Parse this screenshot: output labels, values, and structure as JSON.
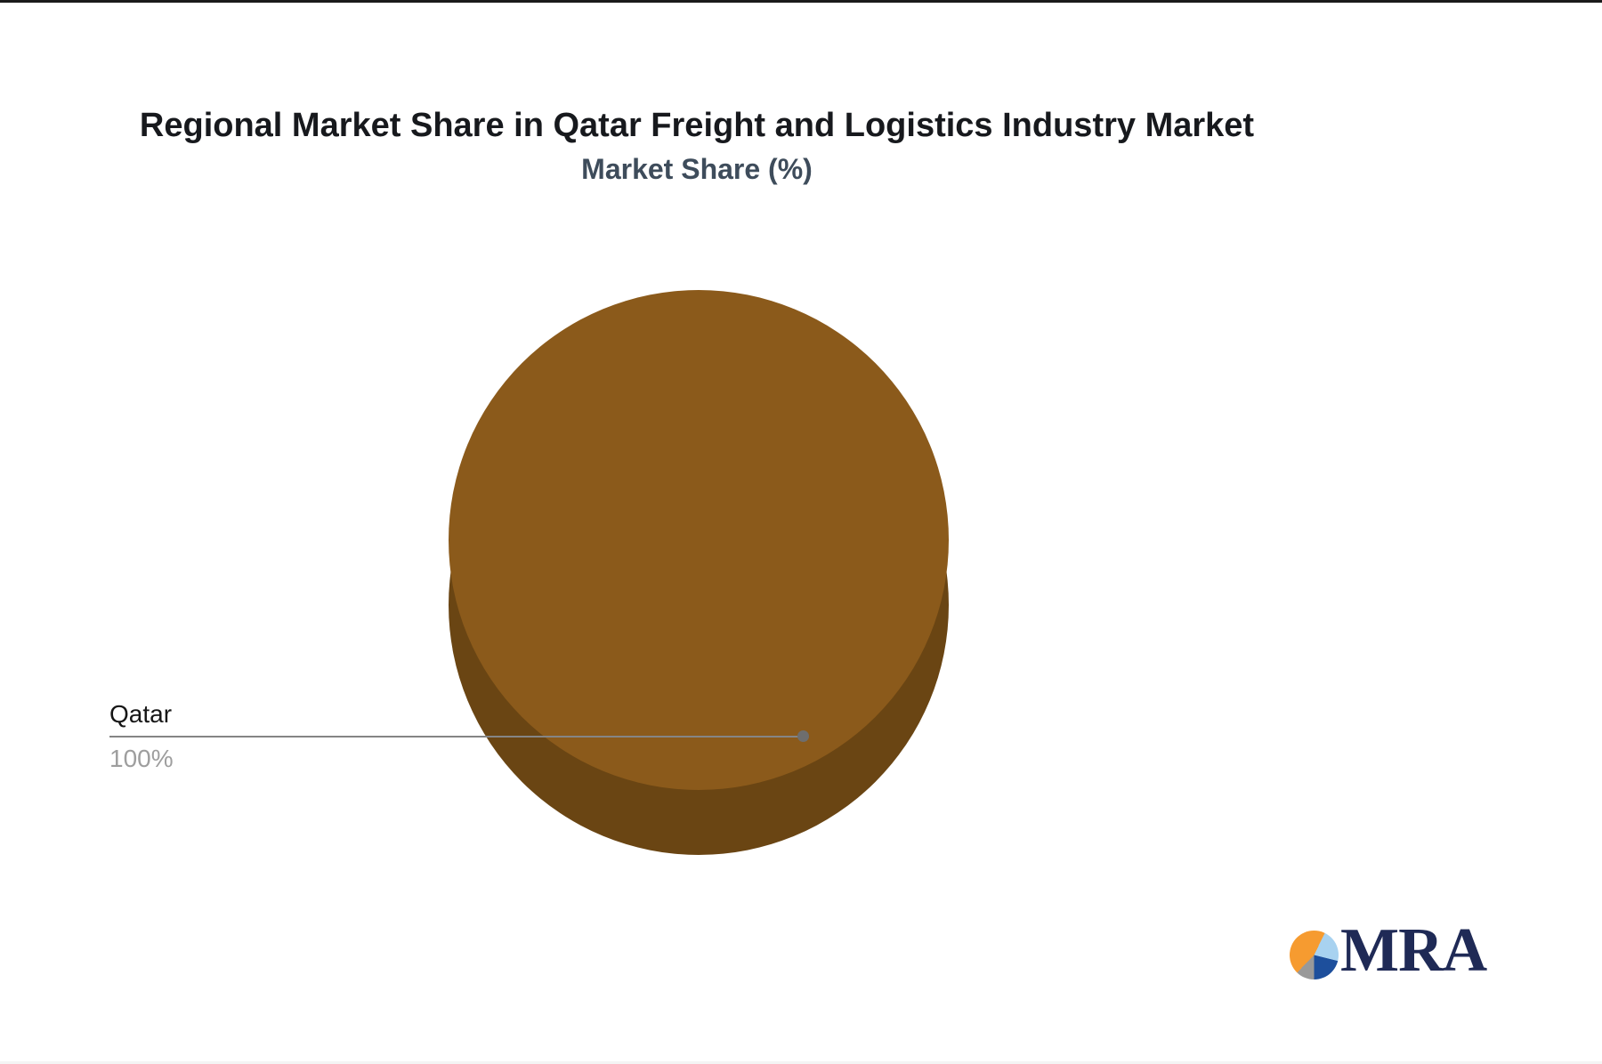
{
  "page": {
    "background": "#ffffff"
  },
  "chart_data": {
    "type": "pie",
    "title": "Regional Market Share in Qatar Freight and Logistics Industry Market",
    "subtitle": "Market Share (%)",
    "categories": [
      "Qatar"
    ],
    "values": [
      100
    ],
    "slices": [
      {
        "label": "Qatar",
        "value": 100,
        "display_value": "100%",
        "color": "#8b5a1b",
        "side_color": "#6a4513"
      }
    ],
    "style": "pseudo-3d single-slice pie, label on left with gray leader line ending in a dot",
    "leader_line_color": "#858585",
    "label_color": "#161616",
    "value_label_color": "#9e9e9e",
    "title_color": "#17191d",
    "subtitle_color": "#3e4c5b",
    "legend_position": "left"
  },
  "logo": {
    "text": "MRA",
    "text_color": "#1f2a56",
    "pie_icon_colors": [
      "#f69b30",
      "#a8d2f0",
      "#1d4f9c",
      "#999999"
    ]
  }
}
